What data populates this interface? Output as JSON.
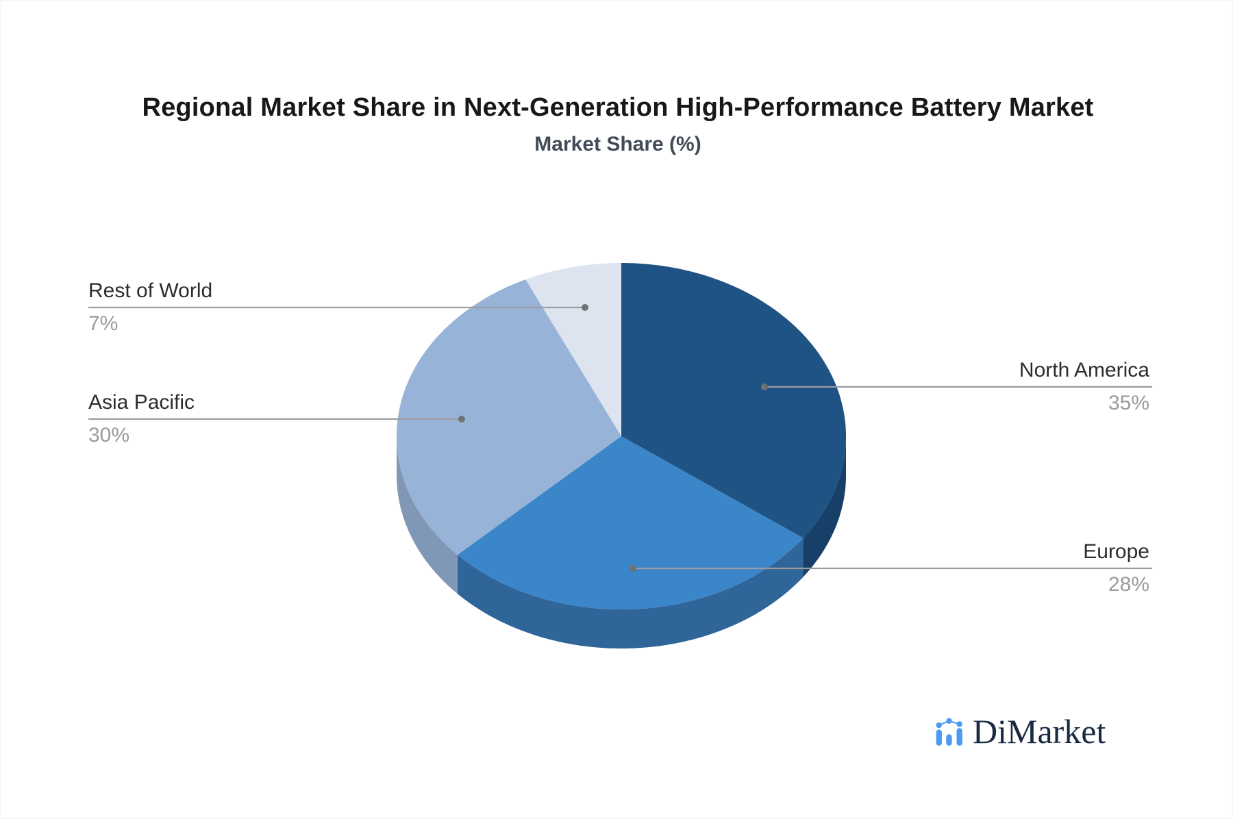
{
  "title": "Regional Market Share in Next-Generation High-Performance Battery Market",
  "subtitle": "Market Share (%)",
  "chart_data": {
    "type": "pie",
    "style": "3d",
    "title": "Regional Market Share in Next-Generation High-Performance Battery Market",
    "subtitle": "Market Share (%)",
    "unit": "%",
    "start_angle_deg": 0,
    "direction": "clockwise",
    "legend_position": "callout-labels",
    "slices": [
      {
        "label": "North America",
        "value": 35,
        "pct_label": "35%",
        "color": "#1F5384",
        "side_color": "#173F68"
      },
      {
        "label": "Europe",
        "value": 28,
        "pct_label": "28%",
        "color": "#3B85C9",
        "side_color": "#30659A"
      },
      {
        "label": "Asia Pacific",
        "value": 30,
        "pct_label": "30%",
        "color": "#97B3D7",
        "side_color": "#8098B6"
      },
      {
        "label": "Rest of World",
        "value": 7,
        "pct_label": "7%",
        "color": "#DDE4EF",
        "side_color": "#C2CBD9"
      }
    ],
    "callout_line_color": "#9b9da0",
    "callout_dot_color": "#6f7275",
    "label_color": "#2b2d30",
    "pct_color": "#989b9e"
  },
  "logo": {
    "text": "DiMarket",
    "icon": "bar-line-chart-icon",
    "text_color": "#1b2a43",
    "icon_color": "#4c9bf2"
  }
}
